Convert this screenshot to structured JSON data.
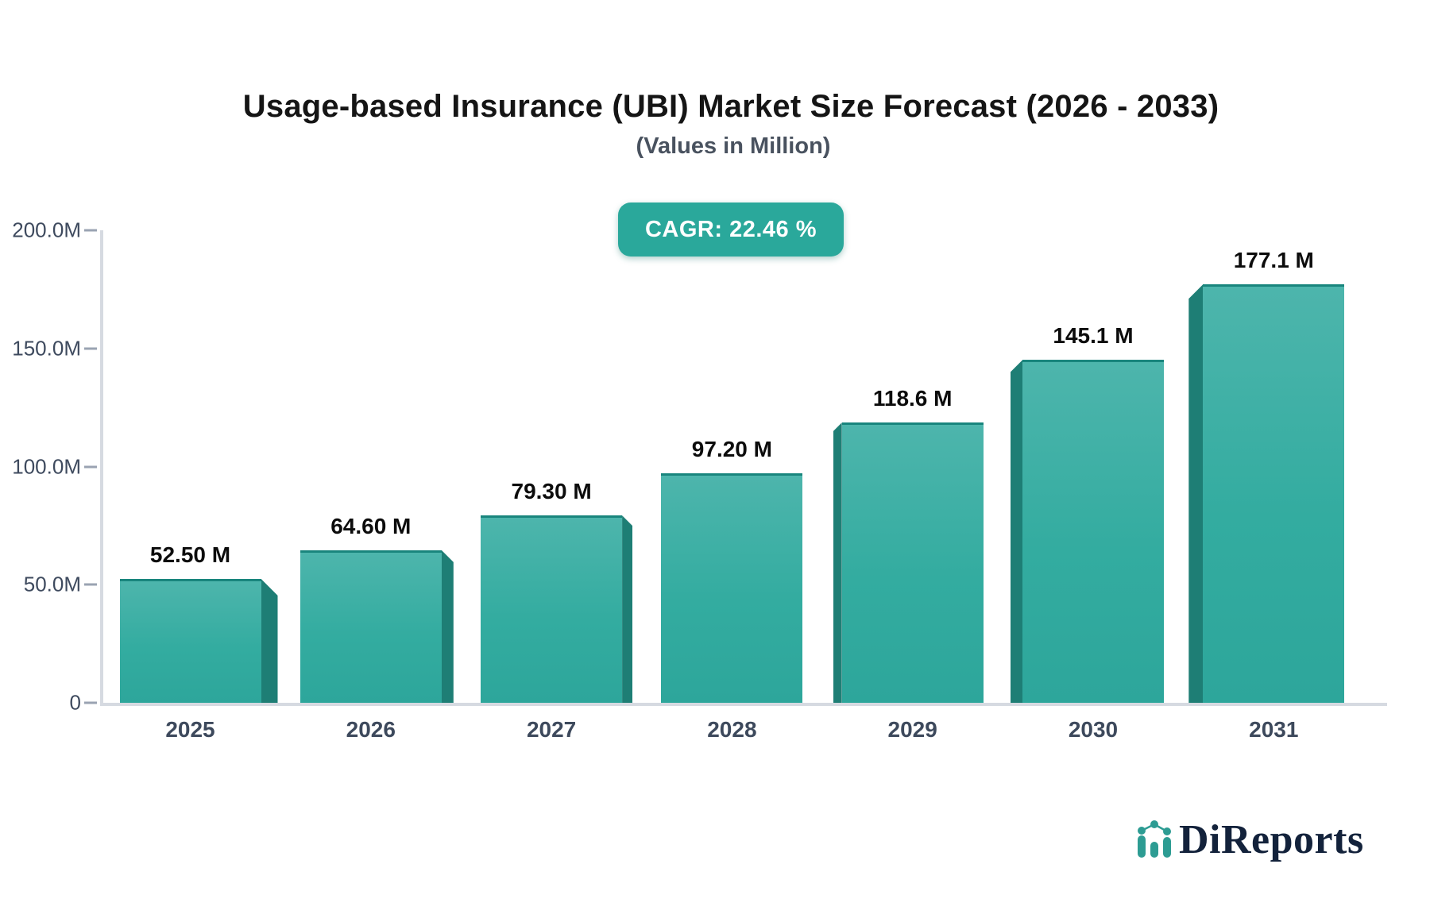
{
  "title": "Usage-based Insurance (UBI) Market Size Forecast (2026 - 2033)",
  "subtitle": "(Values in Million)",
  "badge": {
    "label": "CAGR: 22.46 %"
  },
  "chart_data": {
    "type": "bar",
    "categories": [
      "2025",
      "2026",
      "2027",
      "2028",
      "2029",
      "2030",
      "2031"
    ],
    "values": [
      52.5,
      64.6,
      79.3,
      97.2,
      118.6,
      145.1,
      177.1
    ],
    "value_labels": [
      "52.50 M",
      "64.60 M",
      "79.30 M",
      "97.20 M",
      "118.6 M",
      "145.1 M",
      "177.1 M"
    ],
    "y_ticks": [
      {
        "label": "200.0M",
        "value": 200
      },
      {
        "label": "150.0M",
        "value": 150
      },
      {
        "label": "100.0M",
        "value": 100
      },
      {
        "label": "50.0M",
        "value": 50
      },
      {
        "label": "0",
        "value": 0
      }
    ],
    "ylim": [
      0,
      200
    ],
    "xlabel": "",
    "ylabel": "",
    "grid": false,
    "legend": null,
    "style_3d": true,
    "colors": {
      "bar_face_top": "#4db5ac",
      "bar_face_bottom": "#2da69b",
      "bar_side": "#1e7e75",
      "bar_top_edge": "#19857d",
      "axis": "#d6dae1",
      "tick_text": "#3e4a5e",
      "value_text": "#0c0c0c",
      "badge_bg": "#2aa89b"
    }
  },
  "logo": {
    "text": "DiReports",
    "icon": "mini-bar-line-chart-icon",
    "color": "#13223b",
    "icon_color": "#2d9c93"
  }
}
